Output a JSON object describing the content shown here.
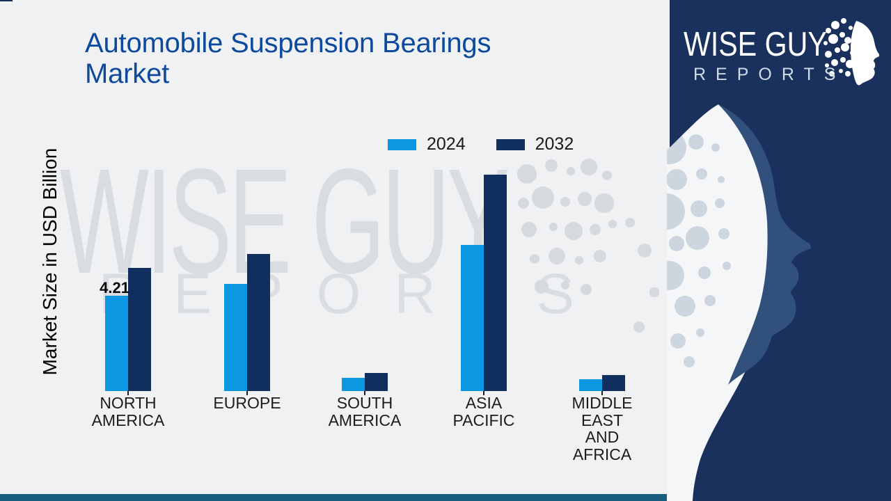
{
  "header": {
    "title": "Automobile Suspension Bearings Market"
  },
  "brand": {
    "name_top": "WISE GUY",
    "name_bottom": "REPORTS"
  },
  "watermark": {
    "text_top": "WISE GUY",
    "text_bottom": "REPORTS"
  },
  "chart_data": {
    "type": "bar",
    "title": "Automobile Suspension Bearings Market",
    "ylabel": "Market Size in USD Billion",
    "unit": "USD Billion",
    "grid": false,
    "legend_position": "top-right",
    "categories": [
      "NORTH AMERICA",
      "EUROPE",
      "SOUTH AMERICA",
      "ASIA PACIFIC",
      "MIDDLE EAST AND AFRICA"
    ],
    "category_lines": [
      [
        "NORTH",
        "AMERICA"
      ],
      [
        "EUROPE"
      ],
      [
        "SOUTH",
        "AMERICA"
      ],
      [
        "ASIA",
        "PACIFIC"
      ],
      [
        "MIDDLE",
        "EAST",
        "AND",
        "AFRICA"
      ]
    ],
    "series": [
      {
        "name": "2024",
        "color": "#0b97e1",
        "values": [
          4.21,
          4.73,
          0.57,
          6.44,
          0.51
        ]
      },
      {
        "name": "2032",
        "color": "#102e5e",
        "values": [
          5.42,
          6.02,
          0.81,
          9.51,
          0.69
        ]
      }
    ],
    "value_labels": [
      {
        "category": "NORTH AMERICA",
        "series": "2024",
        "text": "4.21"
      }
    ],
    "ylim": [
      0,
      10
    ]
  },
  "theme": {
    "background": "#f0f1f2",
    "title_color": "#0d4a9d",
    "bar_2024": "#0b97e1",
    "bar_2032": "#102e5e",
    "right_panel": "#1a315d",
    "face_silhouette": "#31507c",
    "head_circle": "#f4f6f8",
    "footer_strip": "#175e7f",
    "watermark": "#d9dde2"
  }
}
